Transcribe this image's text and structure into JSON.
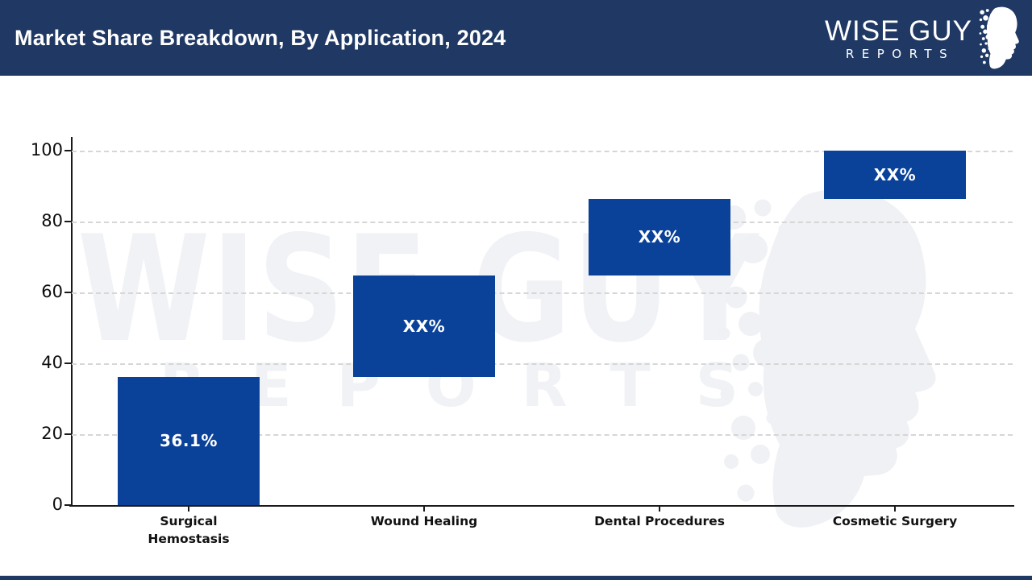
{
  "header": {
    "title": "Market Share Breakdown, By Application, 2024",
    "logo": {
      "line1": "WISE GUY",
      "line2": "REPORTS"
    }
  },
  "watermark": {
    "line1": "WISE GUY",
    "line2": "REPORTS"
  },
  "chart_data": {
    "type": "bar",
    "subtype": "waterfall",
    "title": "Market Share Breakdown, By Application, 2024",
    "categories": [
      "Surgical\nHemostasis",
      "Wound Healing",
      "Dental Procedures",
      "Cosmetic Surgery"
    ],
    "bars": [
      {
        "category": "Surgical\nHemostasis",
        "base": 0,
        "top": 36.1,
        "label": "36.1%"
      },
      {
        "category": "Wound Healing",
        "base": 36.1,
        "top": 64.7,
        "label": "XX%"
      },
      {
        "category": "Dental Procedures",
        "base": 64.7,
        "top": 86.3,
        "label": "XX%"
      },
      {
        "category": "Cosmetic Surgery",
        "base": 86.3,
        "top": 100,
        "label": "XX%"
      }
    ],
    "yticks": [
      0,
      20,
      40,
      60,
      80,
      100
    ],
    "ylim": [
      0,
      100
    ],
    "xlabel": "",
    "ylabel": "",
    "legend": "none",
    "grid": "horizontal-dashed",
    "bar_color": "#0a4199",
    "bar_label_color": "#ffffff"
  },
  "colors": {
    "header_bg": "#1f3864",
    "bar": "#0a4199",
    "grid": "#d6d6d6",
    "axis": "#1a1a1a",
    "watermark": "#f1f2f5"
  }
}
